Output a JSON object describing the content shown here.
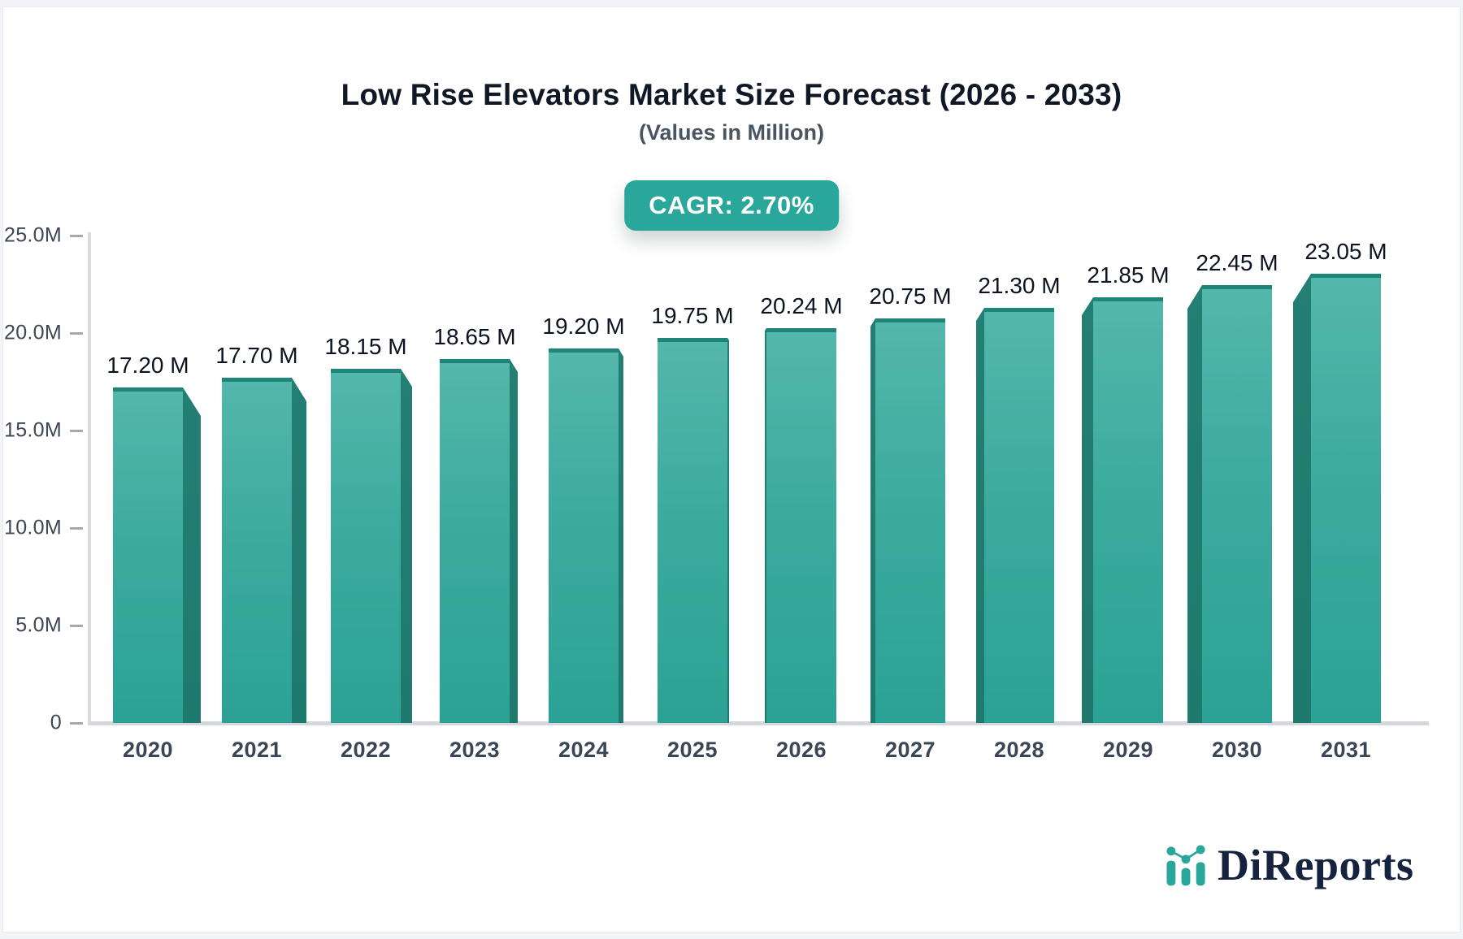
{
  "title": "Low Rise Elevators Market Size Forecast (2026 - 2033)",
  "subtitle": "(Values in Million)",
  "cagr_badge": "CAGR: 2.70%",
  "brand": {
    "name": "DiReports"
  },
  "colors": {
    "teal": "#2aa79b",
    "bar_face_top": "#54b7ab",
    "bar_face_bottom": "#2ba295",
    "bar_side": "#1e7a6d",
    "axis_line": "#d6dade",
    "title_text": "#101826",
    "subtitle_text": "#4a5562",
    "value_text": "#0b1320",
    "year_text": "#3a4656"
  },
  "chart_data": {
    "type": "bar",
    "categories": [
      "2020",
      "2021",
      "2022",
      "2023",
      "2024",
      "2025",
      "2026",
      "2027",
      "2028",
      "2029",
      "2030",
      "2031"
    ],
    "values": [
      17.2,
      17.7,
      18.15,
      18.65,
      19.2,
      19.75,
      20.24,
      20.75,
      21.3,
      21.85,
      22.45,
      23.05
    ],
    "value_labels": [
      "17.20 M",
      "17.70 M",
      "18.15 M",
      "18.65 M",
      "19.20 M",
      "19.75 M",
      "20.24 M",
      "20.75 M",
      "21.30 M",
      "21.85 M",
      "22.45 M",
      "23.05 M"
    ],
    "y_ticks": [
      {
        "label": "25.0M",
        "value": 25
      },
      {
        "label": "20.0M",
        "value": 20
      },
      {
        "label": "15.0M",
        "value": 15
      },
      {
        "label": "10.0M",
        "value": 10
      },
      {
        "label": "5.0M",
        "value": 5
      },
      {
        "label": "0",
        "value": 0
      }
    ],
    "ylim": [
      0,
      25
    ],
    "unit": "Million",
    "grid": false,
    "legend": false,
    "title": "Low Rise Elevators Market Size Forecast (2026 - 2033)",
    "subtitle": "(Values in Million)",
    "annotation": "CAGR: 2.70%"
  }
}
